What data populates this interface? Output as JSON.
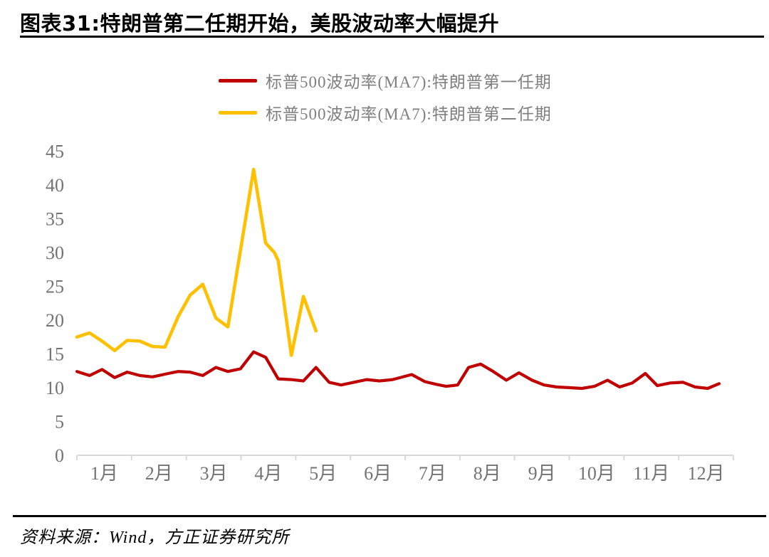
{
  "figure": {
    "title": "图表31:特朗普第二任期开始，美股波动率大幅提升",
    "source": "资料来源：Wind，方正证券研究所"
  },
  "legend": {
    "position": "top-center",
    "items": [
      {
        "label": "标普500波动率(MA7):特朗普第一任期",
        "color": "#C00000"
      },
      {
        "label": "标普500波动率(MA7):特朗普第二任期",
        "color": "#FFC000"
      }
    ]
  },
  "colors": {
    "first_term_line": "#C00000",
    "second_term_line": "#FFC000",
    "axis_line": "#D9D9D9",
    "axis_text": "#737373",
    "legend_text": "#7F7F7F",
    "rules": "#000000",
    "background": "#FFFFFF"
  },
  "chart_data": {
    "type": "line",
    "title": "",
    "xlabel": "",
    "ylabel": "",
    "grid": false,
    "legend_position": "top",
    "x_axis": {
      "unit": "month-of-year (x given as fractional month, 1.0 = Jan 1, 13.0 = Dec 31)",
      "range": [
        1,
        13
      ],
      "tick_labels": [
        "1月",
        "2月",
        "3月",
        "4月",
        "5月",
        "6月",
        "7月",
        "8月",
        "9月",
        "10月",
        "11月",
        "12月"
      ]
    },
    "y_axis": {
      "range": [
        0,
        45
      ],
      "ticks": [
        0,
        5,
        10,
        15,
        20,
        25,
        30,
        35,
        40,
        45
      ]
    },
    "series": [
      {
        "name": "标普500波动率(MA7):特朗普第一任期",
        "color": "#C00000",
        "stroke_width": 4.2,
        "points": [
          [
            1.0,
            12.4
          ],
          [
            1.23,
            11.8
          ],
          [
            1.46,
            12.7
          ],
          [
            1.69,
            11.5
          ],
          [
            1.92,
            12.3
          ],
          [
            2.15,
            11.8
          ],
          [
            2.38,
            11.6
          ],
          [
            2.61,
            12.0
          ],
          [
            2.85,
            12.4
          ],
          [
            3.07,
            12.3
          ],
          [
            3.3,
            11.8
          ],
          [
            3.54,
            13.0
          ],
          [
            3.76,
            12.4
          ],
          [
            3.99,
            12.8
          ],
          [
            4.23,
            15.3
          ],
          [
            4.45,
            14.5
          ],
          [
            4.68,
            11.3
          ],
          [
            4.92,
            11.2
          ],
          [
            5.14,
            11.0
          ],
          [
            5.37,
            13.0
          ],
          [
            5.61,
            10.8
          ],
          [
            5.83,
            10.4
          ],
          [
            6.06,
            10.8
          ],
          [
            6.3,
            11.2
          ],
          [
            6.53,
            11.0
          ],
          [
            6.77,
            11.2
          ],
          [
            7.12,
            11.95
          ],
          [
            7.36,
            10.9
          ],
          [
            7.57,
            10.5
          ],
          [
            7.75,
            10.2
          ],
          [
            7.96,
            10.4
          ],
          [
            8.16,
            13.0
          ],
          [
            8.38,
            13.5
          ],
          [
            8.61,
            12.4
          ],
          [
            8.85,
            11.1
          ],
          [
            9.08,
            12.2
          ],
          [
            9.32,
            11.1
          ],
          [
            9.54,
            10.4
          ],
          [
            9.77,
            10.1
          ],
          [
            10.01,
            10.0
          ],
          [
            10.23,
            9.9
          ],
          [
            10.46,
            10.2
          ],
          [
            10.7,
            11.1
          ],
          [
            10.92,
            10.1
          ],
          [
            11.15,
            10.7
          ],
          [
            11.39,
            12.1
          ],
          [
            11.61,
            10.3
          ],
          [
            11.84,
            10.7
          ],
          [
            12.08,
            10.8
          ],
          [
            12.3,
            10.1
          ],
          [
            12.53,
            9.9
          ],
          [
            12.74,
            10.6
          ]
        ]
      },
      {
        "name": "标普500波动率(MA7):特朗普第二任期",
        "color": "#FFC000",
        "stroke_width": 4.6,
        "points": [
          [
            1.0,
            17.5
          ],
          [
            1.23,
            18.1
          ],
          [
            1.46,
            16.9
          ],
          [
            1.69,
            15.5
          ],
          [
            1.92,
            17.0
          ],
          [
            2.15,
            16.9
          ],
          [
            2.38,
            16.1
          ],
          [
            2.61,
            16.0
          ],
          [
            2.85,
            20.5
          ],
          [
            3.07,
            23.7
          ],
          [
            3.3,
            25.3
          ],
          [
            3.54,
            20.3
          ],
          [
            3.76,
            19.0
          ],
          [
            3.99,
            30.3
          ],
          [
            4.23,
            42.3
          ],
          [
            4.45,
            31.4
          ],
          [
            4.61,
            30.0
          ],
          [
            4.68,
            28.8
          ],
          [
            4.92,
            14.8
          ],
          [
            5.14,
            23.5
          ],
          [
            5.37,
            18.4
          ]
        ]
      }
    ]
  }
}
